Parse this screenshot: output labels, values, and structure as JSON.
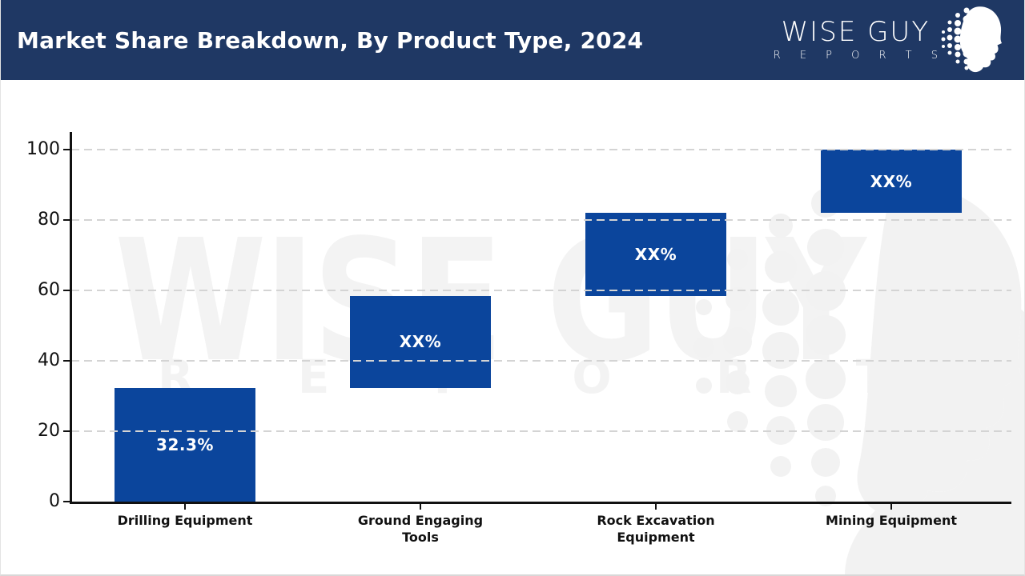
{
  "header": {
    "title": "Market Share Breakdown, By Product Type, 2024",
    "logo": {
      "primary": "WISE GUY",
      "secondary": "R E P O R T S"
    }
  },
  "watermark": {
    "primary": "WISE GUY",
    "secondary": "R E P O R T S"
  },
  "colors": {
    "brand_navy": "#1f3864",
    "bar_blue": "#0b459c",
    "watermark_gray": "#f2f2f2",
    "grid_gray": "#d4d4d4",
    "axis_black": "#111111"
  },
  "chart_data": {
    "type": "bar",
    "subtype": "waterfall",
    "title": "Market Share Breakdown, By Product Type, 2024",
    "xlabel": "",
    "ylabel": "",
    "ylim": [
      0,
      105
    ],
    "yticks": [
      0,
      20,
      40,
      60,
      80,
      100
    ],
    "grid": "dashed-horizontal",
    "legend": "none",
    "categories": [
      "Drilling Equipment",
      "Ground Engaging Tools",
      "Rock Excavation Equipment",
      "Mining Equipment"
    ],
    "category_lines": [
      [
        "Drilling Equipment"
      ],
      [
        "Ground Engaging",
        "Tools"
      ],
      [
        "Rock Excavation",
        "Equipment"
      ],
      [
        "Mining Equipment"
      ]
    ],
    "segments": [
      {
        "category": "Drilling Equipment",
        "start": 0,
        "end": 32.3,
        "label": "32.3%"
      },
      {
        "category": "Ground Engaging Tools",
        "start": 32.3,
        "end": 58.4,
        "label": "XX%"
      },
      {
        "category": "Rock Excavation Equipment",
        "start": 58.4,
        "end": 82.0,
        "label": "XX%"
      },
      {
        "category": "Mining Equipment",
        "start": 82.0,
        "end": 100.0,
        "label": "XX%"
      }
    ],
    "bar_color": "#0b459c",
    "bar_label_color": "#ffffff"
  }
}
